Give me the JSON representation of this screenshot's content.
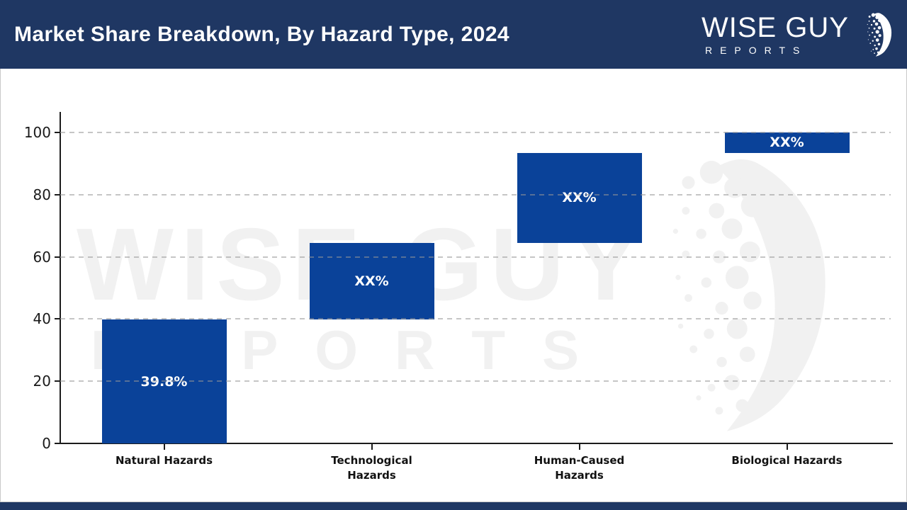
{
  "header": {
    "title": "Market Share Breakdown, By Hazard Type, 2024",
    "logo": {
      "line1": "WISE GUY",
      "line2": "REPORTS"
    }
  },
  "watermark": {
    "line1": "WISE GUY",
    "line2": "REPORTS"
  },
  "chart_data": {
    "type": "bar",
    "subtype": "waterfall",
    "title": "Market Share Breakdown, By Hazard Type, 2024",
    "categories": [
      "Natural Hazards",
      "Technological Hazards",
      "Human-Caused Hazards",
      "Biological Hazards"
    ],
    "bars": [
      {
        "category": "Natural Hazards",
        "start": 0,
        "end": 39.8,
        "label": "39.8%"
      },
      {
        "category": "Technological Hazards",
        "start": 39.8,
        "end": 64.4,
        "label": "XX%"
      },
      {
        "category": "Human-Caused Hazards",
        "start": 64.4,
        "end": 93.5,
        "label": "XX%"
      },
      {
        "category": "Biological Hazards",
        "start": 93.5,
        "end": 100,
        "label": "XX%"
      }
    ],
    "xlabel": "",
    "ylabel": "",
    "ylim": [
      0,
      100
    ],
    "yticks": [
      0,
      20,
      40,
      60,
      80,
      100
    ],
    "grid": "horizontal-dashed",
    "legend": "none",
    "bar_color": "#0a4299",
    "bar_label_color": "#ffffff"
  },
  "colors": {
    "header_bg": "#1f3763",
    "footer_bg": "#1f3763",
    "bar": "#0a4299",
    "watermark": "#f1f1f1",
    "axis": "#1c1c1c"
  }
}
